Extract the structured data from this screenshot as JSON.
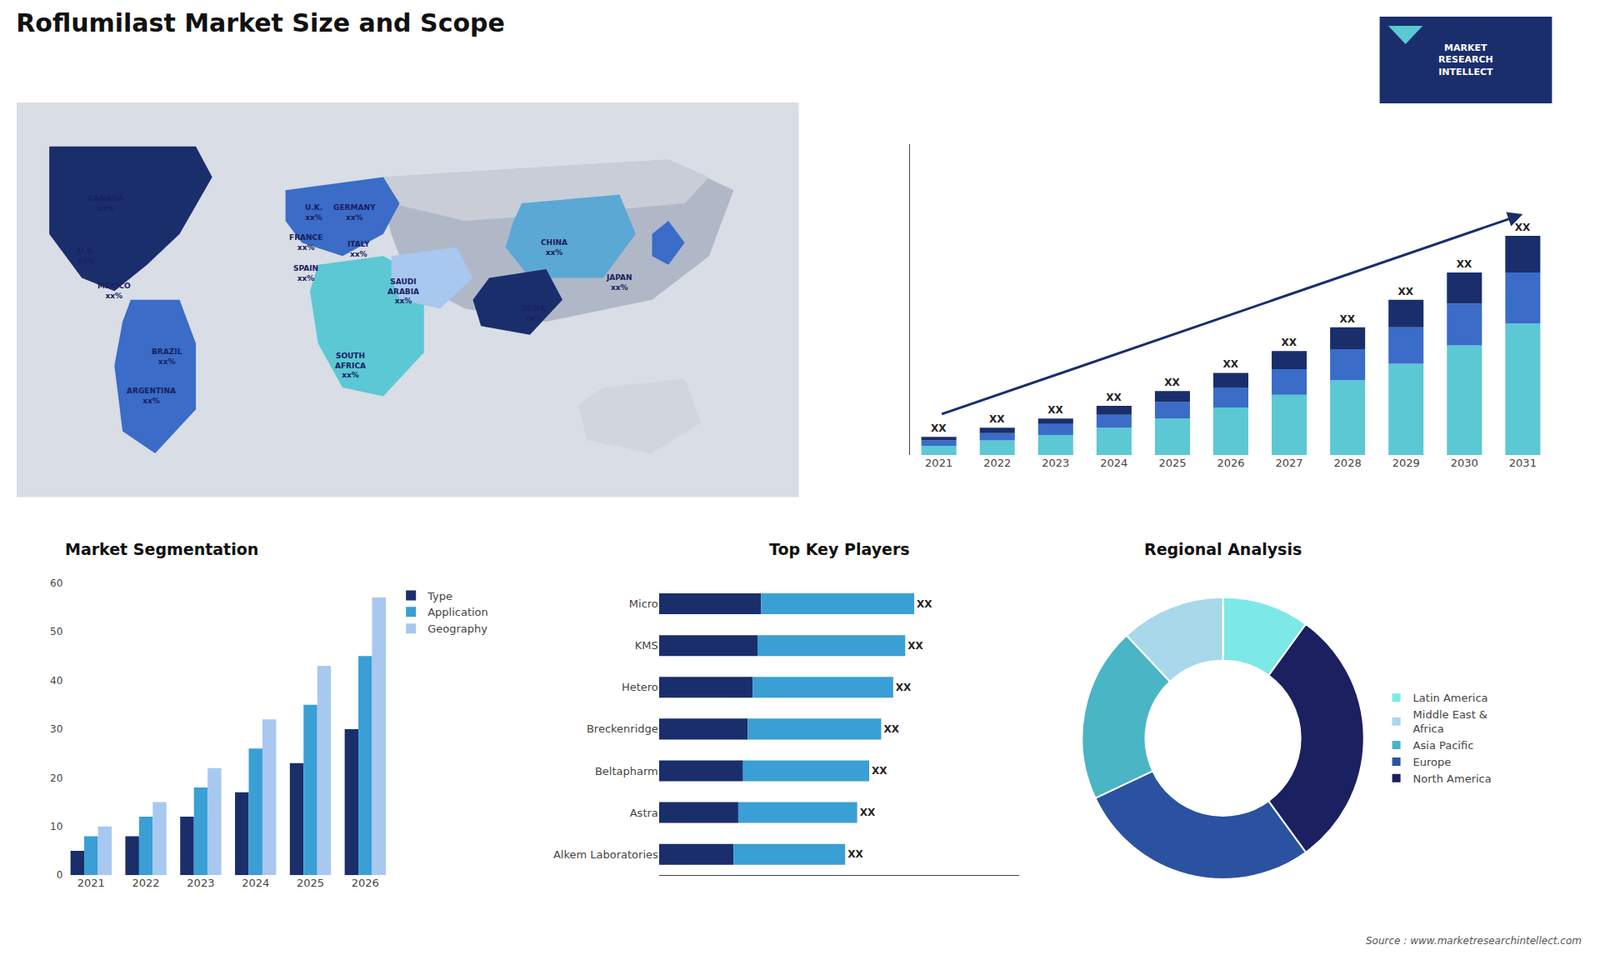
{
  "chart_data": [
    {
      "type": "map",
      "title": "Roflumilast Market Size and Scope",
      "annotations": [
        "CANADA\nxx%",
        "U.S.\nxx%",
        "MEXICO\nxx%",
        "BRAZIL\nxx%",
        "ARGENTINA\nxx%",
        "U.K.\nxx%",
        "FRANCE\nxx%",
        "SPAIN\nxx%",
        "GERMANY\nxx%",
        "ITALY\nxx%",
        "SAUDI\nARABIA\nxx%",
        "SOUTH\nAFRICA\nxx%",
        "CHINA\nxx%",
        "JAPAN\nxx%",
        "INDIA\nxx%"
      ]
    },
    {
      "type": "note",
      "annotations": [
        "MARKET\nRESEARCH\nINTELLECT",
        "Source : www.marketresearchintellect.com"
      ]
    },
    {
      "type": "bar",
      "stacked": true,
      "data_labels": true,
      "categories": [
        "2021",
        "2022",
        "2023",
        "2024",
        "2025",
        "2026",
        "2027",
        "2028",
        "2029",
        "2030",
        "2031"
      ],
      "series": [
        {
          "color": "#5bc8d4",
          "values": [
            0.5,
            0.8,
            1.1,
            1.5,
            2.0,
            2.6,
            3.3,
            4.1,
            5.0,
            6.0,
            7.2
          ]
        },
        {
          "color": "#3a6cc8",
          "values": [
            0.3,
            0.4,
            0.6,
            0.7,
            0.9,
            1.1,
            1.4,
            1.7,
            2.0,
            2.3,
            2.8
          ]
        },
        {
          "color": "#1a2e6c",
          "values": [
            0.2,
            0.3,
            0.3,
            0.5,
            0.6,
            0.8,
            1.0,
            1.2,
            1.5,
            1.7,
            2.0
          ],
          "value_labels": [
            "XX",
            "XX",
            "XX",
            "XX",
            "XX",
            "XX",
            "XX",
            "XX",
            "XX",
            "XX",
            "XX"
          ]
        }
      ],
      "ylim": [
        0,
        17
      ],
      "tick_labels": "x",
      "grid": false
    },
    {
      "type": "bar",
      "title": "Market Segmentation",
      "categories": [
        "2021",
        "2022",
        "2023",
        "2024",
        "2025",
        "2026"
      ],
      "series": [
        {
          "name": "Type",
          "color": "#1a2e6c",
          "values": [
            5,
            8,
            12,
            17,
            23,
            30
          ]
        },
        {
          "name": "Application",
          "color": "#3a9fd4",
          "values": [
            8,
            12,
            18,
            26,
            35,
            45
          ]
        },
        {
          "name": "Geography",
          "color": "#a8c8f0",
          "values": [
            10,
            15,
            22,
            32,
            43,
            57
          ]
        }
      ],
      "ylim": [
        0,
        60
      ],
      "yticks": [
        0,
        10,
        20,
        30,
        40,
        50,
        60
      ],
      "legend": "right",
      "grid": false
    },
    {
      "type": "bar",
      "title": "Top Key Players",
      "orientation": "horizontal",
      "stacked": true,
      "data_labels": true,
      "categories": [
        "Micro",
        "KMS",
        "Hetero",
        "Breckenridge",
        "Beltapharm",
        "Astra",
        "Alkem Laboratories"
      ],
      "series": [
        {
          "color": "#1a2e6c",
          "values": [
            3.4,
            3.28,
            3.12,
            2.96,
            2.8,
            2.64,
            2.48
          ]
        },
        {
          "color": "#3a9fd4",
          "values": [
            5.1,
            4.92,
            4.68,
            4.44,
            4.2,
            3.96,
            3.72
          ],
          "value_labels": [
            "XX",
            "XX",
            "XX",
            "XX",
            "XX",
            "XX",
            "XX"
          ]
        }
      ],
      "xlim": [
        0,
        12
      ],
      "tick_labels": "y",
      "grid": false
    },
    {
      "type": "pie",
      "title": "Regional Analysis",
      "categories": [
        "Latin America",
        "Middle East &\nAfrica",
        "Asia Pacific",
        "Europe",
        "North America"
      ],
      "values": [
        0.1,
        0.12,
        0.2,
        0.28,
        0.3
      ],
      "colors": [
        "#7de8e8",
        "#a8d8ea",
        "#4ab5c4",
        "#2a52a0",
        "#1a2060"
      ],
      "legend": "right"
    }
  ]
}
